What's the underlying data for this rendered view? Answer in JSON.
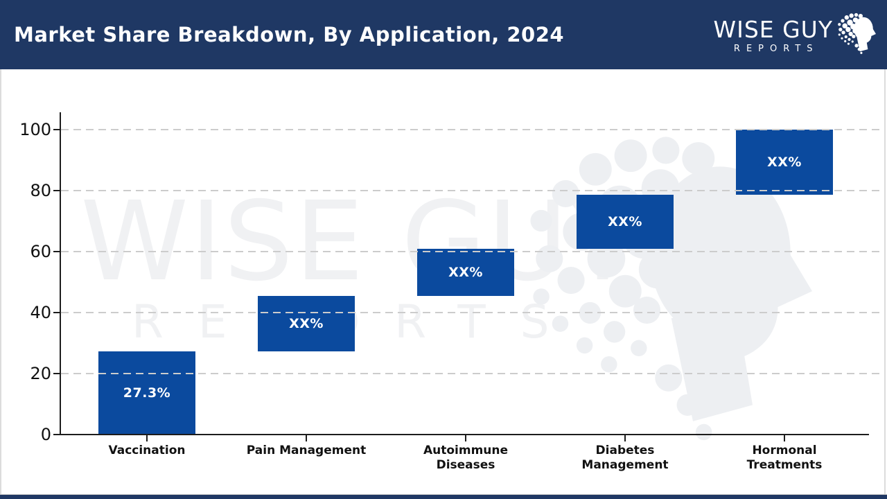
{
  "header": {
    "title": "Market Share Breakdown, By Application, 2024",
    "logo": {
      "line1": "WISE GUY",
      "line2": "REPORTS"
    }
  },
  "watermark": {
    "line1": "WISE GUY",
    "line2": "REPORTS"
  },
  "colors": {
    "header_bg": "#1f3864",
    "bar": "#0b4a9e",
    "bar_label": "#ffffff",
    "grid": "#cccccc",
    "axis": "#1c1c1c",
    "watermark": "#f0f1f3"
  },
  "chart_data": {
    "type": "bar",
    "subtype": "waterfall",
    "title": "Market Share Breakdown, By Application, 2024",
    "categories": [
      "Vaccination",
      "Pain Management",
      "Autoimmune Diseases",
      "Diabetes Management",
      "Hormonal Treatments"
    ],
    "category_display": [
      "Vaccination",
      "Pain Management",
      "Autoimmune\nDiseases",
      "Diabetes\nManagement",
      "Hormonal\nTreatments"
    ],
    "segments": [
      {
        "category": "Vaccination",
        "start": 0,
        "end": 27.3,
        "label": "27.3%"
      },
      {
        "category": "Pain Management",
        "start": 27.3,
        "end": 45.5,
        "label": "XX%"
      },
      {
        "category": "Autoimmune Diseases",
        "start": 45.5,
        "end": 60.9,
        "label": "XX%"
      },
      {
        "category": "Diabetes Management",
        "start": 60.9,
        "end": 78.7,
        "label": "XX%"
      },
      {
        "category": "Hormonal Treatments",
        "start": 78.7,
        "end": 100,
        "label": "XX%"
      }
    ],
    "xlabel": "",
    "ylabel": "",
    "ylim": [
      0,
      100
    ],
    "yticks": [
      0,
      20,
      40,
      60,
      80,
      100
    ],
    "grid": "horizontal-dashed",
    "legend": "none"
  }
}
